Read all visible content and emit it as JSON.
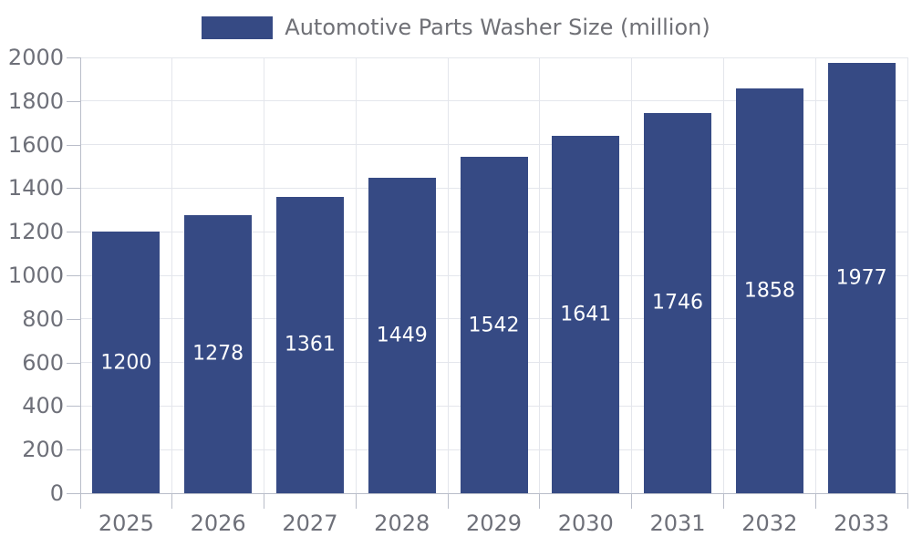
{
  "chart_data": {
    "type": "bar",
    "title": "Automotive Parts Washer Size (million)",
    "categories": [
      "2025",
      "2026",
      "2027",
      "2028",
      "2029",
      "2030",
      "2031",
      "2032",
      "2033"
    ],
    "values": [
      1200,
      1278,
      1361,
      1449,
      1542,
      1641,
      1746,
      1858,
      1977
    ],
    "value_labels_inside_bars": true,
    "xlabel": "",
    "ylabel": "",
    "ylim": [
      0,
      2000
    ],
    "ytick_step": 200,
    "ytick_labels": [
      "0",
      "200",
      "400",
      "600",
      "800",
      "1000",
      "1200",
      "1400",
      "1600",
      "1800",
      "2000"
    ],
    "grid": "on",
    "legend_position": "top-center",
    "colors": {
      "bar": "#364a84",
      "grid_line": "#e4e6ec",
      "axis_line": "#b9bdc9",
      "tick_text": "#6e7079",
      "legend_text": "#6f7076",
      "value_label_text": "#ffffff",
      "background": "#ffffff"
    }
  }
}
